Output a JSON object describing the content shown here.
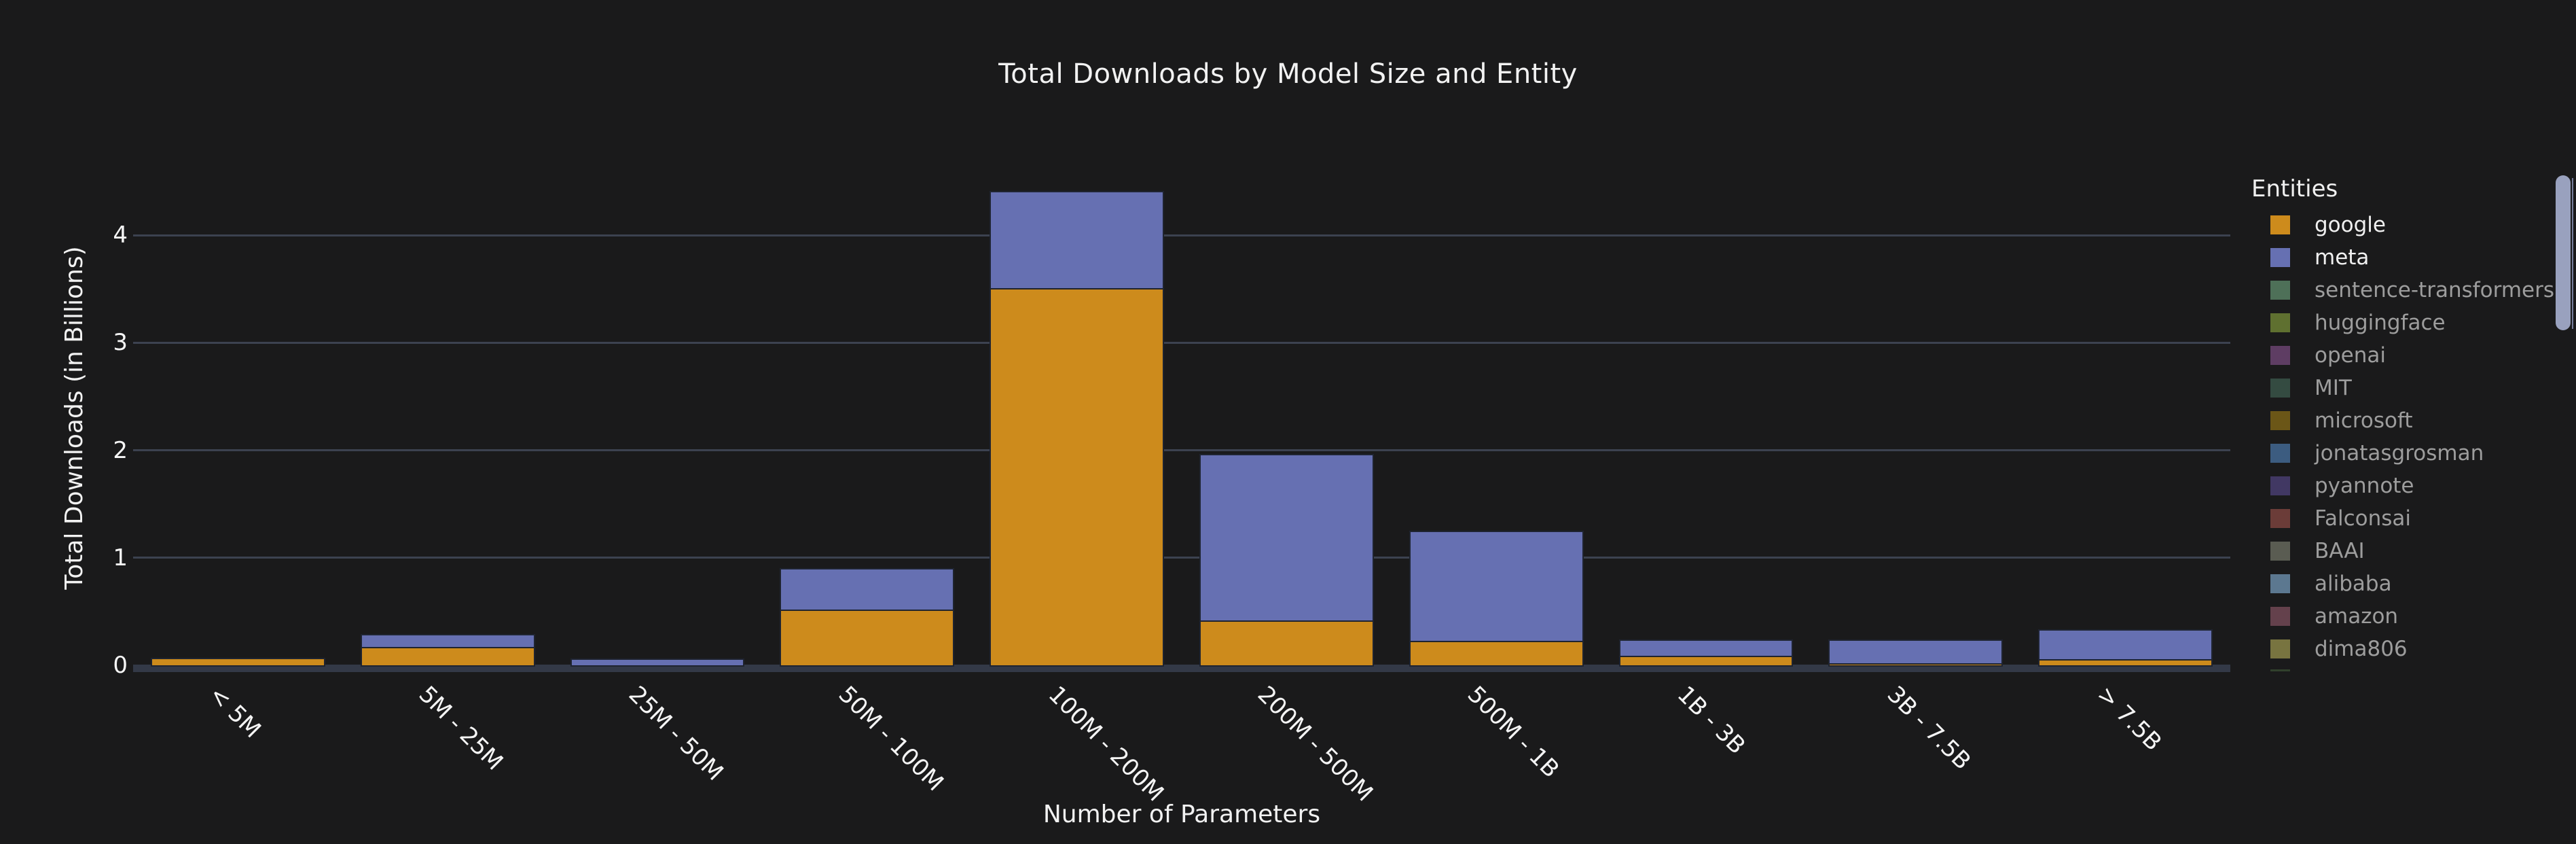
{
  "chart_data": {
    "type": "bar",
    "stacked": true,
    "title": "Total Downloads by Model Size and Entity",
    "xlabel": "Number of Parameters",
    "ylabel": "Total Downloads (in Billions)",
    "categories": [
      "< 5M",
      "5M - 25M",
      "25M - 50M",
      "50M - 100M",
      "100M - 200M",
      "200M - 500M",
      "500M - 1B",
      "1B - 3B",
      "3B - 7.5B",
      "> 7.5B"
    ],
    "series": [
      {
        "name": "google",
        "color": "#cd8b1c",
        "values": [
          0.055,
          0.17,
          0.0,
          0.52,
          3.51,
          0.42,
          0.23,
          0.09,
          0.02,
          0.06
        ]
      },
      {
        "name": "meta",
        "color": "#6670b2",
        "values": [
          0.0,
          0.11,
          0.05,
          0.37,
          0.89,
          1.53,
          1.01,
          0.14,
          0.21,
          0.26
        ]
      }
    ],
    "yticks": [
      0,
      1,
      2,
      3,
      4
    ],
    "ylim": [
      0,
      4.6
    ],
    "grid": true,
    "legend_position": "right"
  },
  "legend": {
    "title": "Entities",
    "items": [
      {
        "label": "google",
        "color": "#cd8b1c",
        "active": true
      },
      {
        "label": "meta",
        "color": "#6670b2",
        "active": true
      },
      {
        "label": "sentence-transformers",
        "color": "#4e7058",
        "active": false
      },
      {
        "label": "huggingface",
        "color": "#5f7030",
        "active": false
      },
      {
        "label": "openai",
        "color": "#5e3d63",
        "active": false
      },
      {
        "label": "MIT",
        "color": "#344b41",
        "active": false
      },
      {
        "label": "microsoft",
        "color": "#6b5617",
        "active": false
      },
      {
        "label": "jonatasgrosman",
        "color": "#3c5c80",
        "active": false
      },
      {
        "label": "pyannote",
        "color": "#413863",
        "active": false
      },
      {
        "label": "Falconsai",
        "color": "#6b3c38",
        "active": false
      },
      {
        "label": "BAAI",
        "color": "#5a5c52",
        "active": false
      },
      {
        "label": "alibaba",
        "color": "#5c7890",
        "active": false
      },
      {
        "label": "amazon",
        "color": "#64414c",
        "active": false
      },
      {
        "label": "dima806",
        "color": "#787440",
        "active": false
      }
    ]
  },
  "colors": {
    "background": "#1a1a1b",
    "gridline": "#3c4250",
    "axis_line": "#333947",
    "tick_text": "#f5f5f5",
    "muted_text": "#9d9d9d",
    "scrollbar_thumb": "#99a1be"
  }
}
